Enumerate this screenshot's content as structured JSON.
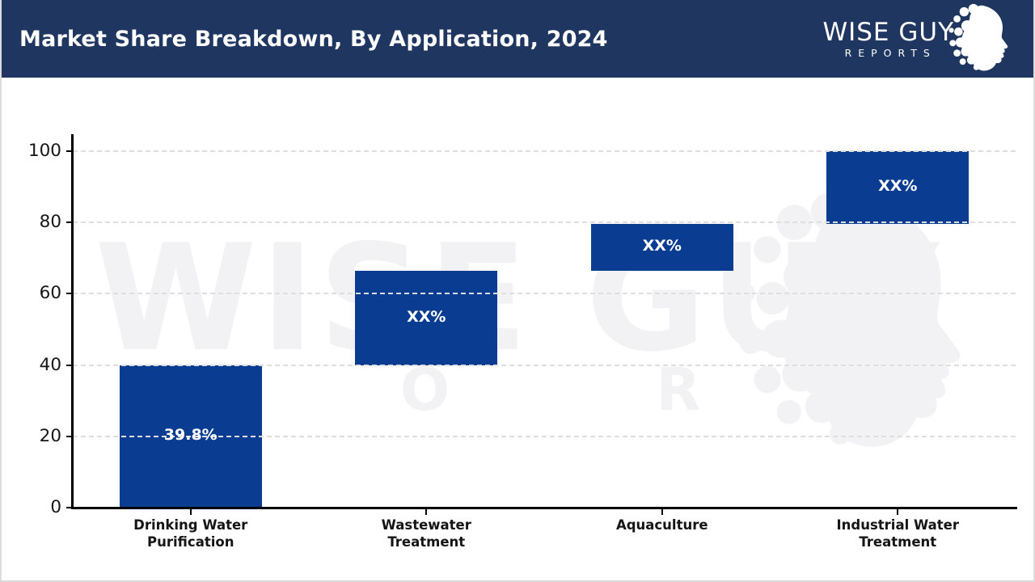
{
  "page": {
    "background": "#ffffff",
    "border_color": "#dcdcdc"
  },
  "header": {
    "title": "Market Share Breakdown, By Application, 2024",
    "background": "#1f3760",
    "logo": {
      "line1": "WISE GUY",
      "line2": "REPORTS",
      "head_icon": "dotted-head-profile",
      "color": "#ffffff"
    }
  },
  "watermark": {
    "line1": "WISE GUY",
    "line2": "P O R T S",
    "head_icon": "dotted-head-profile",
    "color": "#f2f2f4"
  },
  "chart_data": {
    "type": "bar",
    "subtype": "floating-waterfall-percentage",
    "title": "Market Share Breakdown, By Application, 2024",
    "categories": [
      "Drinking Water Purification",
      "Wastewater Treatment",
      "Aquaculture",
      "Industrial Water Treatment"
    ],
    "category_lines": [
      [
        "Drinking Water",
        "Purification"
      ],
      [
        "Wastewater",
        "Treatment"
      ],
      [
        "Aquaculture"
      ],
      [
        "Industrial Water",
        "Treatment"
      ]
    ],
    "segments": [
      {
        "category": "Drinking Water Purification",
        "start": 0,
        "end": 39.8,
        "label": "39.8%"
      },
      {
        "category": "Wastewater Treatment",
        "start": 39.8,
        "end": 66.5,
        "label": "XX%"
      },
      {
        "category": "Aquaculture",
        "start": 66.5,
        "end": 79.7,
        "label": "XX%"
      },
      {
        "category": "Industrial Water Treatment",
        "start": 79.7,
        "end": 100,
        "label": "XX%"
      }
    ],
    "yticks": [
      0,
      20,
      40,
      60,
      80,
      100
    ],
    "ylim": [
      0,
      100
    ],
    "xlabel": "",
    "ylabel": "",
    "grid": true,
    "grid_style": "dashed",
    "legend": "none",
    "bar_color": "#0a3d91",
    "bar_label_color": "#ffffff",
    "grid_color": "#dedede",
    "axis_color": "#000000",
    "tick_label_color": "#151515"
  }
}
